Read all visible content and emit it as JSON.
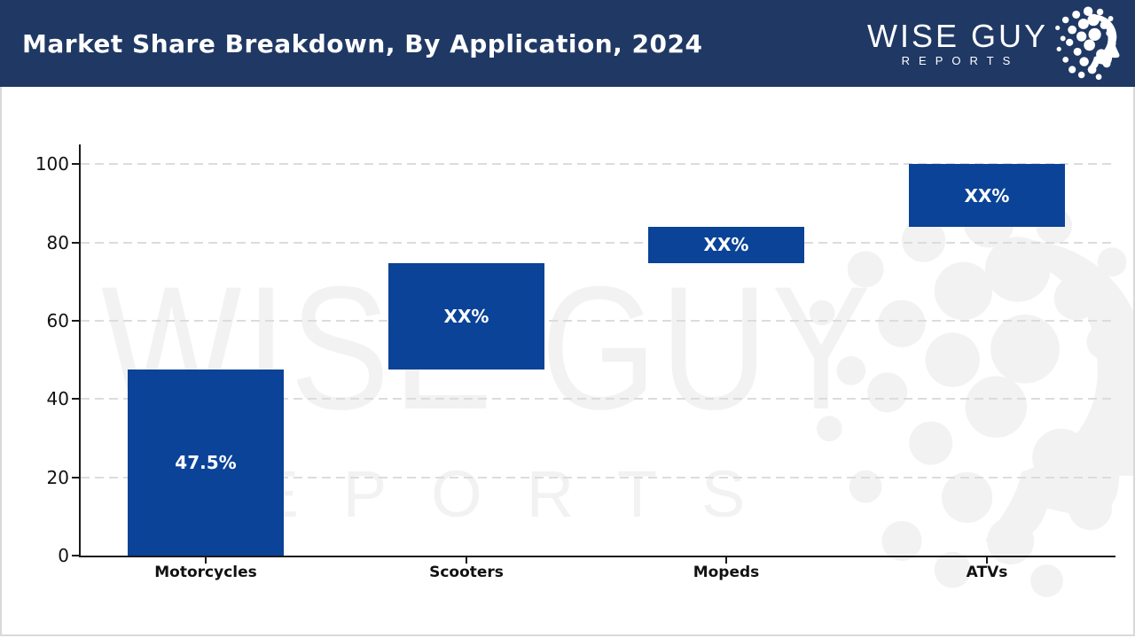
{
  "header": {
    "title": "Market Share Breakdown, By Application, 2024",
    "bg_color": "#1f3864",
    "logo": {
      "line1": "WISE GUY",
      "line2": "REPORTS"
    }
  },
  "watermark": {
    "line1": "WISE GUY",
    "line2": "REPORTS"
  },
  "colors": {
    "header_bg": "#1f3864",
    "bar_blue": "#0a4397",
    "axis": "#1a1a1a",
    "gridline": "#dcdcdc",
    "watermark": "#f2f2f2",
    "card_border": "#d9d9d9"
  },
  "chart_data": {
    "type": "bar",
    "subtype": "waterfall",
    "title": "Market Share Breakdown, By Application, 2024",
    "categories": [
      "Motorcycles",
      "Scooters",
      "Mopeds",
      "ATVs"
    ],
    "series": [
      {
        "name": "Market share (%)",
        "segments": [
          {
            "category": "Motorcycles",
            "start": 0,
            "end": 47.5,
            "label": "47.5%"
          },
          {
            "category": "Scooters",
            "start": 47.5,
            "end": 74.7,
            "label": "XX%"
          },
          {
            "category": "Mopeds",
            "start": 74.7,
            "end": 84.1,
            "label": "XX%"
          },
          {
            "category": "ATVs",
            "start": 84.1,
            "end": 100,
            "label": "XX%"
          }
        ]
      }
    ],
    "ylim": [
      0,
      100
    ],
    "yticks": [
      0,
      20,
      40,
      60,
      80,
      100
    ],
    "xlabel": "",
    "ylabel": "",
    "grid": "horizontal-dashed",
    "legend": false,
    "bar_color": "#0a4397",
    "bar_label_color": "#ffffff"
  }
}
